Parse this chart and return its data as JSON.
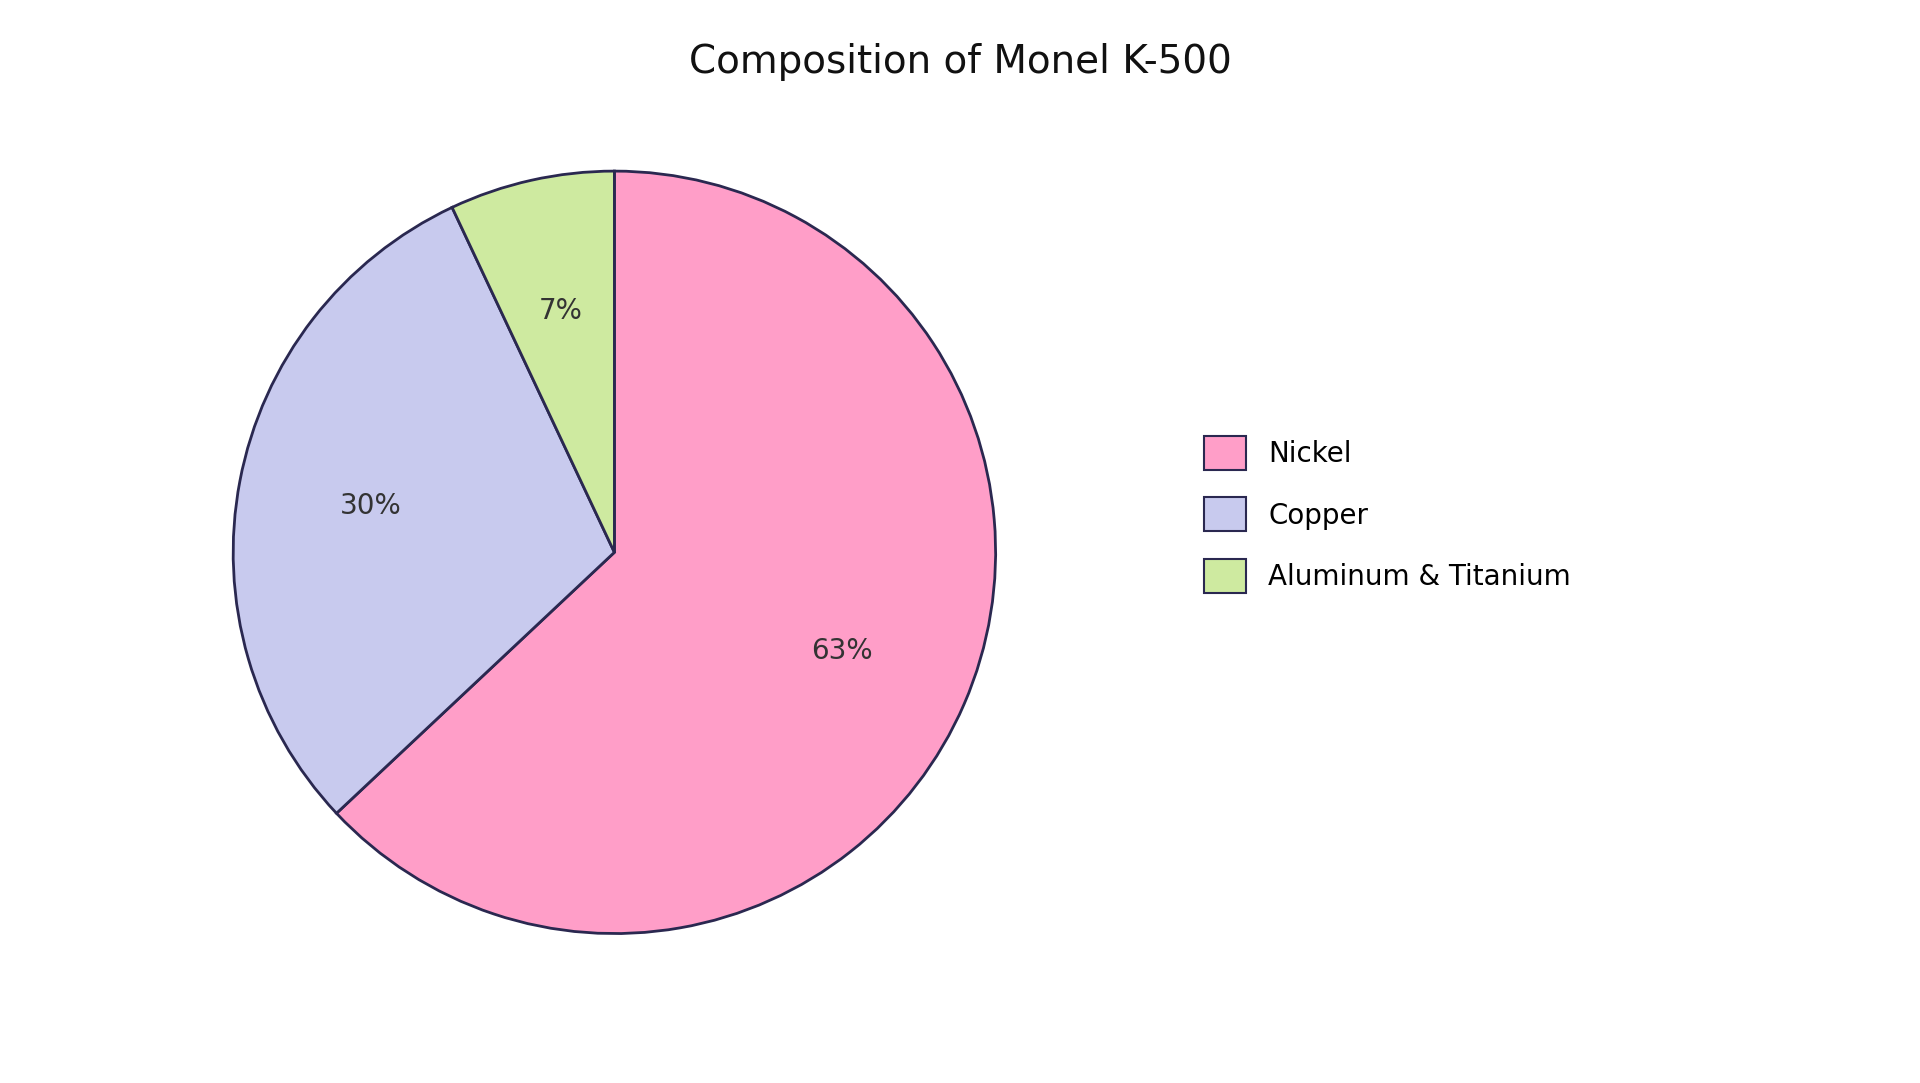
{
  "title": "Composition of Monel K-500",
  "labels": [
    "Nickel",
    "Copper",
    "Aluminum & Titanium"
  ],
  "values": [
    63,
    30,
    7
  ],
  "colors": [
    "#FF9EC8",
    "#C8CAEE",
    "#CEEAA0"
  ],
  "edge_color": "#2A2850",
  "edge_width": 2.0,
  "start_angle": 90,
  "title_fontsize": 28,
  "autopct_fontsize": 20,
  "legend_fontsize": 20,
  "background_color": "#FFFFFF",
  "counterclock": false,
  "pctdistance": 0.65
}
